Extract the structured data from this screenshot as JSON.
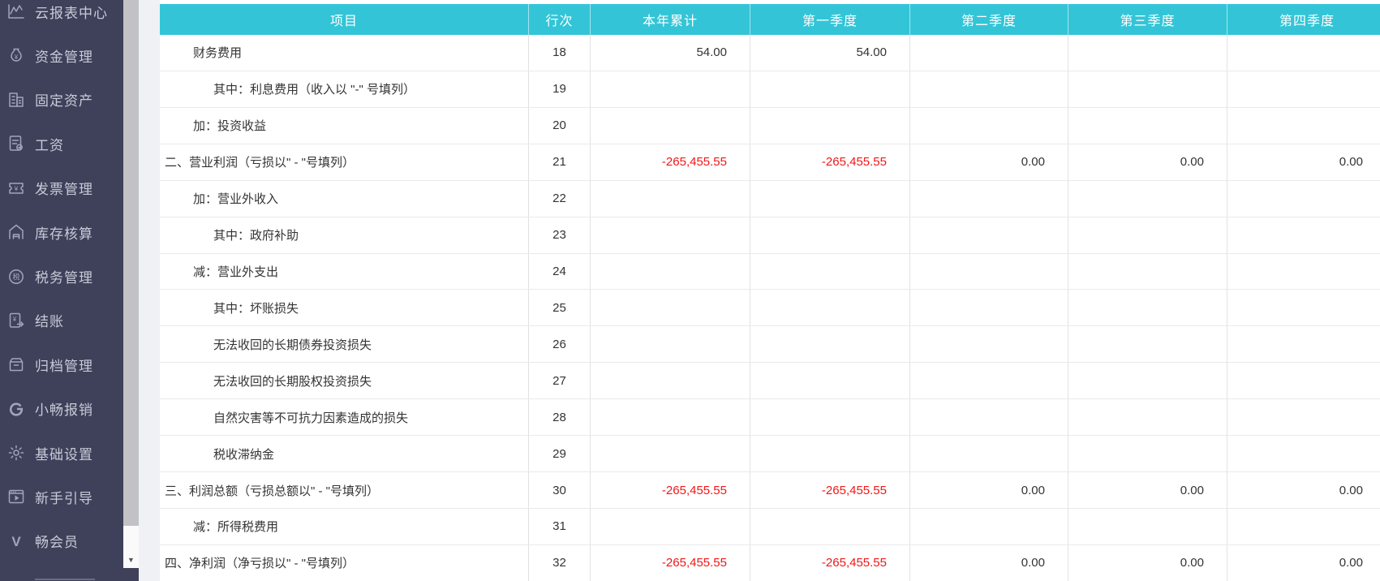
{
  "sidebar": {
    "items": [
      {
        "label": "云报表中心",
        "icon": "cloud-report-icon"
      },
      {
        "label": "资金管理",
        "icon": "money-bag-icon"
      },
      {
        "label": "固定资产",
        "icon": "building-icon"
      },
      {
        "label": "工资",
        "icon": "payroll-icon"
      },
      {
        "label": "发票管理",
        "icon": "invoice-icon"
      },
      {
        "label": "库存核算",
        "icon": "warehouse-icon"
      },
      {
        "label": "税务管理",
        "icon": "tax-stamp-icon"
      },
      {
        "label": "结账",
        "icon": "ledger-icon"
      },
      {
        "label": "归档管理",
        "icon": "archive-icon"
      },
      {
        "label": "小畅报销",
        "icon": "reimburse-icon"
      },
      {
        "label": "基础设置",
        "icon": "gear-icon"
      },
      {
        "label": "新手引导",
        "icon": "video-guide-icon"
      },
      {
        "label": "畅会员",
        "icon": "vip-icon"
      },
      {
        "label": "",
        "icon": "clipped-icon",
        "partial": true
      }
    ],
    "scroll_down_arrow": "▼"
  },
  "table": {
    "columns": [
      "项目",
      "行次",
      "本年累计",
      "第一季度",
      "第二季度",
      "第三季度",
      "第四季度"
    ],
    "rows": [
      {
        "item": "财务费用",
        "indent": 1,
        "line": "18",
        "values": [
          "54.00",
          "54.00",
          "",
          "",
          ""
        ]
      },
      {
        "item": "其中：利息费用（收入以 \"-\" 号填列）",
        "indent": 2,
        "line": "19",
        "values": [
          "",
          "",
          "",
          "",
          ""
        ]
      },
      {
        "item": "加：投资收益",
        "indent": 1,
        "line": "20",
        "values": [
          "",
          "",
          "",
          "",
          ""
        ]
      },
      {
        "item": "二、营业利润（亏损以\" - \"号填列）",
        "indent": 0,
        "line": "21",
        "values": [
          "-265,455.55",
          "-265,455.55",
          "0.00",
          "0.00",
          "0.00"
        ]
      },
      {
        "item": "加：营业外收入",
        "indent": 1,
        "line": "22",
        "values": [
          "",
          "",
          "",
          "",
          ""
        ]
      },
      {
        "item": "其中：政府补助",
        "indent": 2,
        "line": "23",
        "values": [
          "",
          "",
          "",
          "",
          ""
        ]
      },
      {
        "item": "减：营业外支出",
        "indent": 1,
        "line": "24",
        "values": [
          "",
          "",
          "",
          "",
          ""
        ]
      },
      {
        "item": "其中：坏账损失",
        "indent": 2,
        "line": "25",
        "values": [
          "",
          "",
          "",
          "",
          ""
        ]
      },
      {
        "item": "无法收回的长期债券投资损失",
        "indent": 2,
        "line": "26",
        "values": [
          "",
          "",
          "",
          "",
          ""
        ]
      },
      {
        "item": "无法收回的长期股权投资损失",
        "indent": 2,
        "line": "27",
        "values": [
          "",
          "",
          "",
          "",
          ""
        ]
      },
      {
        "item": "自然灾害等不可抗力因素造成的损失",
        "indent": 2,
        "line": "28",
        "values": [
          "",
          "",
          "",
          "",
          ""
        ]
      },
      {
        "item": "税收滞纳金",
        "indent": 2,
        "line": "29",
        "values": [
          "",
          "",
          "",
          "",
          ""
        ]
      },
      {
        "item": "三、利润总额（亏损总额以\" - \"号填列）",
        "indent": 0,
        "line": "30",
        "values": [
          "-265,455.55",
          "-265,455.55",
          "0.00",
          "0.00",
          "0.00"
        ]
      },
      {
        "item": "减：所得税费用",
        "indent": 1,
        "line": "31",
        "values": [
          "",
          "",
          "",
          "",
          ""
        ]
      },
      {
        "item": "四、净利润（净亏损以\" - \"号填列）",
        "indent": 0,
        "line": "32",
        "values": [
          "-265,455.55",
          "-265,455.55",
          "0.00",
          "0.00",
          "0.00"
        ]
      }
    ]
  },
  "colors": {
    "header_bg": "#33C5D7",
    "header_text": "#FFFFFF",
    "negative_value": "#F21616",
    "sidebar_bg": "#3F415A",
    "sidebar_text": "#C7CAD8"
  }
}
